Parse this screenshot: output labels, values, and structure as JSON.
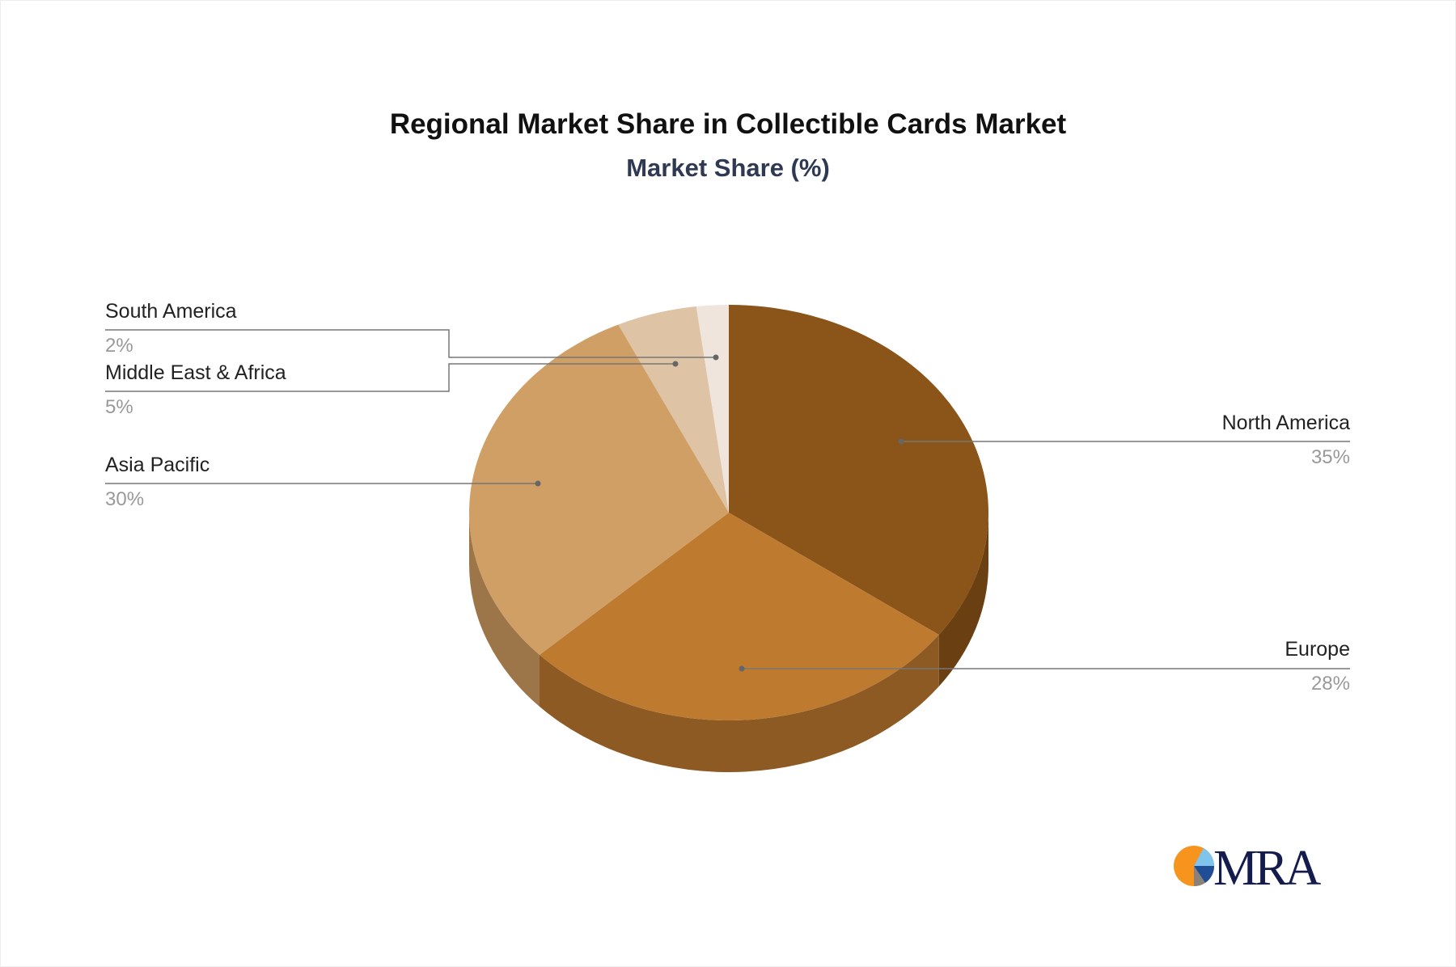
{
  "chart_data": {
    "type": "pie",
    "title": "Regional Market Share in Collectible Cards Market",
    "subtitle": "Market Share (%)",
    "slices": [
      {
        "label": "North America",
        "value": 35,
        "display": "35%",
        "color": "#8B5419",
        "side": "#6A3F12"
      },
      {
        "label": "Europe",
        "value": 28,
        "display": "28%",
        "color": "#BE7A2F",
        "side": "#8E5A23"
      },
      {
        "label": "Asia Pacific",
        "value": 30,
        "display": "30%",
        "color": "#D09F66",
        "side": "#9C7649"
      },
      {
        "label": "Middle East & Africa",
        "value": 5,
        "display": "5%",
        "color": "#DEC3A5",
        "side": "#A89178"
      },
      {
        "label": "South America",
        "value": 2,
        "display": "2%",
        "color": "#EFE5DC",
        "side": "#B8AEA5"
      }
    ],
    "style": "3d"
  },
  "logo": {
    "text": "MRA",
    "colors": [
      "#F7941D",
      "#7FC4EC",
      "#1F4E96",
      "#8A8279",
      "#141B4D"
    ]
  }
}
